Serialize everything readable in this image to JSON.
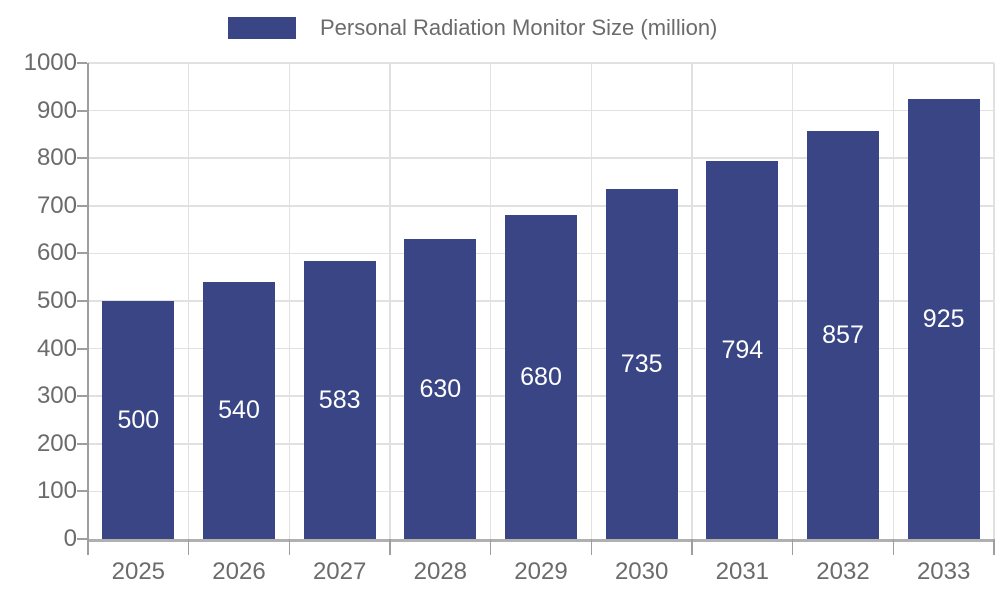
{
  "legend": {
    "label": "Personal Radiation Monitor Size (million)"
  },
  "chart_data": {
    "type": "bar",
    "title": "Personal Radiation Monitor Size (million)",
    "categories": [
      "2025",
      "2026",
      "2027",
      "2028",
      "2029",
      "2030",
      "2031",
      "2032",
      "2033"
    ],
    "values": [
      500,
      540,
      583,
      630,
      680,
      735,
      794,
      857,
      925
    ],
    "value_labels": [
      "500",
      "540",
      "583",
      "630",
      "680",
      "735",
      "794",
      "857",
      "925"
    ],
    "xlabel": "",
    "ylabel": "",
    "ylim": [
      0,
      1000
    ],
    "ytick_step": 100,
    "yticks": [
      0,
      100,
      200,
      300,
      400,
      500,
      600,
      700,
      800,
      900,
      1000
    ],
    "grid": "horizontal-and-vertical",
    "legend_position": "top-center",
    "value_label_position": "inside-center"
  },
  "colors": {
    "bar": "#3a4585",
    "grid": "#e1e1e1",
    "axis": "#9e9e9e",
    "axis_x": "#b0b0b0",
    "text": "#6b6b6b",
    "value_label": "#ffffff",
    "background": "#ffffff"
  }
}
